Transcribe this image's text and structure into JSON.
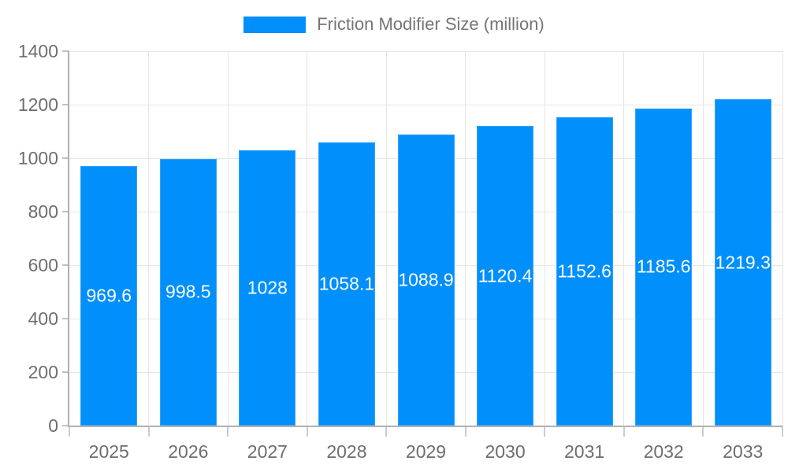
{
  "legend": {
    "label": "Friction Modifier Size (million)",
    "swatch_color": "#008FFB"
  },
  "chart_data": {
    "type": "bar",
    "title": "",
    "series_name": "Friction Modifier Size (million)",
    "categories": [
      "2025",
      "2026",
      "2027",
      "2028",
      "2029",
      "2030",
      "2031",
      "2032",
      "2033"
    ],
    "values": [
      969.6,
      998.5,
      1028,
      1058.1,
      1088.9,
      1120.4,
      1152.6,
      1185.6,
      1219.3
    ],
    "value_labels": [
      "969.6",
      "998.5",
      "1028",
      "1058.1",
      "1088.9",
      "1120.4",
      "1152.6",
      "1185.6",
      "1219.3"
    ],
    "xlabel": "",
    "ylabel": "",
    "ylim": [
      0,
      1400
    ],
    "ytick_step": 200,
    "ytick_labels": [
      "0",
      "200",
      "400",
      "600",
      "800",
      "1000",
      "1200",
      "1400"
    ],
    "grid": true,
    "legend_position": "top",
    "bar_color": "#008FFB",
    "value_label_color": "#ffffff"
  }
}
